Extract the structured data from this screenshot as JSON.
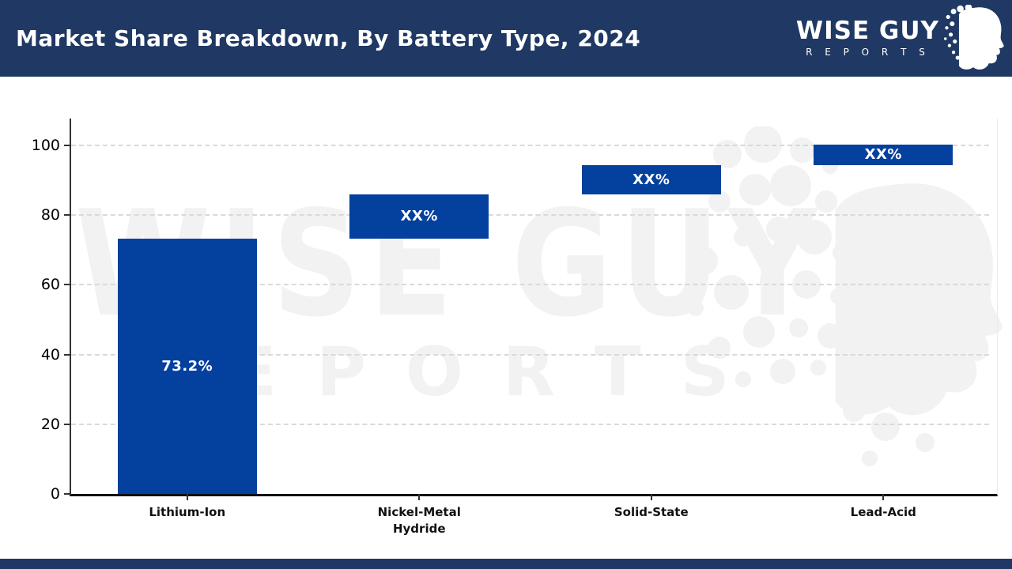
{
  "header": {
    "title": "Market Share Breakdown, By Battery Type, 2024",
    "logo": {
      "brand": "WISE GUY",
      "sub": "R E P O R T S",
      "face_icon": "dotted-face-profile"
    }
  },
  "watermark": {
    "brand": "WISE GUY",
    "sub": "R E P O R T S"
  },
  "chart_data": {
    "type": "bar",
    "variant": "floating-segment-waterfall",
    "title": "Market Share Breakdown, By Battery Type, 2024",
    "categories": [
      "Lithium-Ion",
      "Nickel-Metal\nHydride",
      "Solid-State",
      "Lead-Acid"
    ],
    "series": [
      {
        "name": "Market share by battery type (%)",
        "segments": [
          {
            "category": "Lithium-Ion",
            "from": 0,
            "to": 73.2,
            "label": "73.2%"
          },
          {
            "category": "Nickel-Metal Hydride",
            "from": 73.2,
            "to": 86.0,
            "label": "XX%"
          },
          {
            "category": "Solid-State",
            "from": 86.0,
            "to": 94.3,
            "label": "XX%"
          },
          {
            "category": "Lead-Acid",
            "from": 94.3,
            "to": 100.3,
            "label": "XX%"
          }
        ]
      }
    ],
    "xlabel": "",
    "ylabel": "",
    "yticks": [
      0,
      20,
      40,
      60,
      80,
      100
    ],
    "ylim": [
      0,
      108
    ],
    "grid": "horizontal-dashed",
    "legend": "none",
    "bar_color": "#04409d",
    "bar_label_color": "#ffffff"
  },
  "colors": {
    "header_bg": "#1f3864",
    "footer_bg": "#1f3864",
    "bar": "#04409d",
    "gridline": "#d9d9d9",
    "axis": "#1a1a1a",
    "watermark": "#f2f2f2",
    "page_bg": "#ffffff"
  }
}
